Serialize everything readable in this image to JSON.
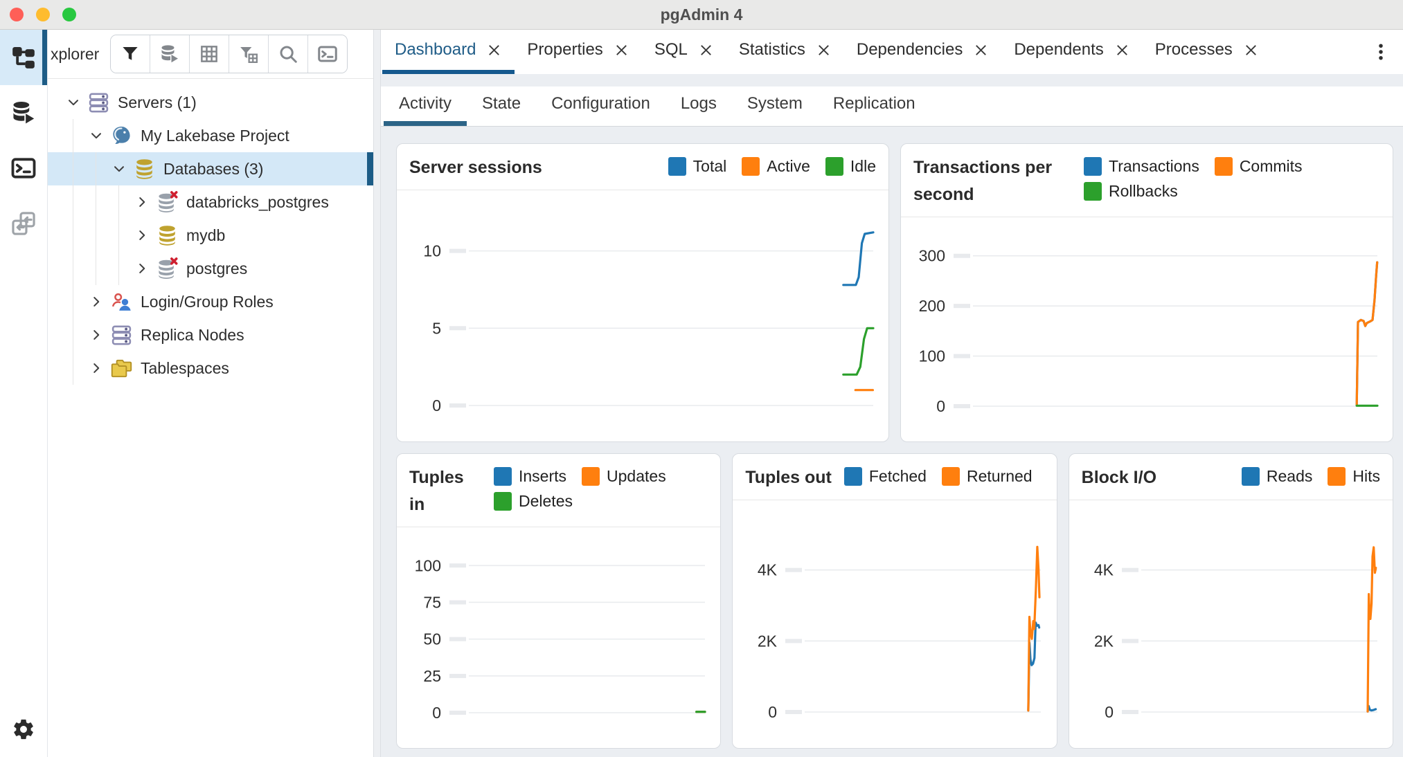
{
  "titlebar": {
    "title": "pgAdmin 4"
  },
  "iconbar": {
    "items": [
      {
        "id": "object-explorer",
        "icon": "sitemap-icon",
        "selected": true
      },
      {
        "id": "query-tool",
        "icon": "database-play-icon"
      },
      {
        "id": "psql-tool",
        "icon": "terminal-icon"
      },
      {
        "id": "schema-diff",
        "icon": "schema-diff-icon",
        "disabled": true
      }
    ],
    "bottom_items": [
      {
        "id": "preferences",
        "icon": "gear-icon"
      }
    ]
  },
  "explorer": {
    "panel_title": "xplorer",
    "toolbar": [
      {
        "id": "filter",
        "icon": "filter-icon"
      },
      {
        "id": "view-data",
        "icon": "database-play-icon"
      },
      {
        "id": "view-table",
        "icon": "grid-icon"
      },
      {
        "id": "filtered-rows",
        "icon": "filter-grid-icon"
      },
      {
        "id": "search-objects",
        "icon": "search-icon"
      },
      {
        "id": "psql",
        "icon": "terminal-icon"
      }
    ]
  },
  "tree": {
    "items": [
      {
        "label": "Servers (1)",
        "level": 0,
        "chevron": "down",
        "icon": "server-icon"
      },
      {
        "label": "My Lakebase Project",
        "level": 1,
        "chevron": "down",
        "icon": "postgres-server-icon"
      },
      {
        "label": "Databases (3)",
        "level": 2,
        "chevron": "down",
        "icon": "database-gold-icon",
        "selected": true
      },
      {
        "label": "databricks_postgres",
        "level": 3,
        "chevron": "right",
        "icon": "database-disconnected-icon"
      },
      {
        "label": "mydb",
        "level": 3,
        "chevron": "right",
        "icon": "database-gold-icon"
      },
      {
        "label": "postgres",
        "level": 3,
        "chevron": "right",
        "icon": "database-disconnected-icon"
      },
      {
        "label": "Login/Group Roles",
        "level": 1,
        "chevron": "right",
        "icon": "login-group-roles-icon"
      },
      {
        "label": "Replica Nodes",
        "level": 1,
        "chevron": "right",
        "icon": "server-icon"
      },
      {
        "label": "Tablespaces",
        "level": 1,
        "chevron": "right",
        "icon": "tablespaces-icon"
      }
    ]
  },
  "tabs": {
    "items": [
      {
        "label": "Dashboard",
        "active": true
      },
      {
        "label": "Properties"
      },
      {
        "label": "SQL"
      },
      {
        "label": "Statistics"
      },
      {
        "label": "Dependencies"
      },
      {
        "label": "Dependents"
      },
      {
        "label": "Processes"
      }
    ],
    "close_icon": "close-icon",
    "overflow_menu_icon": "kebab-menu-icon"
  },
  "dashboard": {
    "subtabs": [
      {
        "label": "Activity",
        "active": true
      },
      {
        "label": "State"
      },
      {
        "label": "Configuration"
      },
      {
        "label": "Logs"
      },
      {
        "label": "System"
      },
      {
        "label": "Replication"
      }
    ]
  },
  "colors": {
    "accent_blue": "#1f5c87",
    "selection_bg": "#d4e8f7",
    "selection_bar": "#1d5c86",
    "series_blue": "#1f77b4",
    "series_orange": "#ff7f0e",
    "series_green": "#2ca02c"
  },
  "chart_data": [
    {
      "id": "sessions",
      "type": "line",
      "row": 1,
      "title": "Server sessions",
      "legend_align": "end",
      "ymax": 12.4,
      "yticks": [
        {
          "value": 0,
          "label": "0"
        },
        {
          "value": 5,
          "label": "5"
        },
        {
          "value": 10,
          "label": "10"
        }
      ],
      "series": [
        {
          "name": "Total",
          "color": "#1f77b4",
          "points": [
            [
              92.6,
              7.8
            ],
            [
              95.7,
              7.8
            ],
            [
              96.4,
              8.3
            ],
            [
              97.2,
              10.5
            ],
            [
              97.9,
              11.1
            ],
            [
              100,
              11.2
            ]
          ]
        },
        {
          "name": "Active",
          "color": "#ff7f0e",
          "points": [
            [
              95.6,
              1
            ],
            [
              99.9,
              1
            ]
          ]
        },
        {
          "name": "Idle",
          "color": "#2ca02c",
          "points": [
            [
              92.6,
              2
            ],
            [
              95.9,
              2
            ],
            [
              96.8,
              2.5
            ],
            [
              97.7,
              4.3
            ],
            [
              98.5,
              5
            ],
            [
              100,
              5
            ]
          ]
        }
      ]
    },
    {
      "id": "tps",
      "type": "line",
      "row": 1,
      "title": "Transactions per second",
      "legend_align": "start",
      "ymax": 330,
      "yticks": [
        {
          "value": 0,
          "label": "0"
        },
        {
          "value": 100,
          "label": "100"
        },
        {
          "value": 200,
          "label": "200"
        },
        {
          "value": 300,
          "label": "300"
        }
      ],
      "series": [
        {
          "name": "Transactions",
          "color": "#1f77b4",
          "points": [
            [
              94.9,
              2
            ],
            [
              95.2,
              168
            ],
            [
              95.9,
              172
            ],
            [
              96.6,
              170
            ],
            [
              97.0,
              160
            ],
            [
              97.4,
              166
            ],
            [
              98.2,
              169
            ],
            [
              98.8,
              172
            ],
            [
              99.3,
              212
            ],
            [
              99.7,
              260
            ],
            [
              99.95,
              287
            ]
          ]
        },
        {
          "name": "Commits",
          "color": "#ff7f0e",
          "points": [
            [
              94.9,
              2
            ],
            [
              95.2,
              168
            ],
            [
              95.9,
              172
            ],
            [
              96.6,
              170
            ],
            [
              97.0,
              160
            ],
            [
              97.4,
              166
            ],
            [
              98.2,
              169
            ],
            [
              98.8,
              172
            ],
            [
              99.3,
              212
            ],
            [
              99.7,
              260
            ],
            [
              99.95,
              287
            ]
          ]
        },
        {
          "name": "Rollbacks",
          "color": "#2ca02c",
          "points": [
            [
              94.9,
              1
            ],
            [
              100,
              1
            ]
          ]
        }
      ]
    },
    {
      "id": "tuples_in",
      "type": "line",
      "row": 2,
      "title": "Tuples in",
      "legend_align": "start",
      "ymax": 110,
      "yticks": [
        {
          "value": 0,
          "label": "0"
        },
        {
          "value": 25,
          "label": "25"
        },
        {
          "value": 50,
          "label": "50"
        },
        {
          "value": 75,
          "label": "75"
        },
        {
          "value": 100,
          "label": "100"
        }
      ],
      "series": [
        {
          "name": "Inserts",
          "color": "#1f77b4",
          "points": [
            [
              96.4,
              0.6
            ],
            [
              100,
              0.6
            ]
          ]
        },
        {
          "name": "Updates",
          "color": "#ff7f0e",
          "points": [
            [
              96.4,
              0.6
            ],
            [
              100,
              0.6
            ]
          ]
        },
        {
          "name": "Deletes",
          "color": "#2ca02c",
          "points": [
            [
              96.4,
              0.6
            ],
            [
              100,
              0.6
            ]
          ]
        }
      ]
    },
    {
      "id": "tuples_out",
      "type": "line",
      "row": 2,
      "title": "Tuples out",
      "legend_align": "start",
      "ymax": 5300,
      "yticks": [
        {
          "value": 0,
          "label": "0"
        },
        {
          "value": 2000,
          "label": "2K"
        },
        {
          "value": 4000,
          "label": "4K"
        }
      ],
      "series": [
        {
          "name": "Fetched",
          "color": "#1f77b4",
          "points": [
            [
              94.7,
              40
            ],
            [
              95.2,
              1950
            ],
            [
              95.6,
              1480
            ],
            [
              96.1,
              1320
            ],
            [
              96.7,
              1360
            ],
            [
              97.3,
              1520
            ],
            [
              97.8,
              2520
            ],
            [
              98.4,
              2430
            ],
            [
              99.0,
              2450
            ],
            [
              99.3,
              2380
            ]
          ]
        },
        {
          "name": "Returned",
          "color": "#ff7f0e",
          "points": [
            [
              94.7,
              40
            ],
            [
              95.15,
              2680
            ],
            [
              95.6,
              2270
            ],
            [
              96.2,
              2060
            ],
            [
              96.8,
              2560
            ],
            [
              97.2,
              2340
            ],
            [
              97.9,
              3420
            ],
            [
              98.5,
              4650
            ],
            [
              99.0,
              4040
            ],
            [
              99.4,
              3230
            ]
          ]
        }
      ]
    },
    {
      "id": "block_io",
      "type": "line",
      "row": 2,
      "title": "Block I/O",
      "legend_align": "end",
      "ymax": 5300,
      "yticks": [
        {
          "value": 0,
          "label": "0"
        },
        {
          "value": 2000,
          "label": "2K"
        },
        {
          "value": 4000,
          "label": "4K"
        }
      ],
      "series": [
        {
          "name": "Reads",
          "color": "#1f77b4",
          "points": [
            [
              95.9,
              15
            ],
            [
              96.3,
              170
            ],
            [
              96.8,
              60
            ],
            [
              97.5,
              45
            ],
            [
              98.5,
              60
            ],
            [
              99.3,
              80
            ]
          ]
        },
        {
          "name": "Hits",
          "color": "#ff7f0e",
          "points": [
            [
              95.9,
              15
            ],
            [
              96.35,
              3320
            ],
            [
              96.75,
              2680
            ],
            [
              97.05,
              2620
            ],
            [
              97.55,
              3060
            ],
            [
              97.95,
              4380
            ],
            [
              98.45,
              4640
            ],
            [
              98.95,
              3920
            ],
            [
              99.35,
              4060
            ]
          ]
        }
      ]
    }
  ]
}
